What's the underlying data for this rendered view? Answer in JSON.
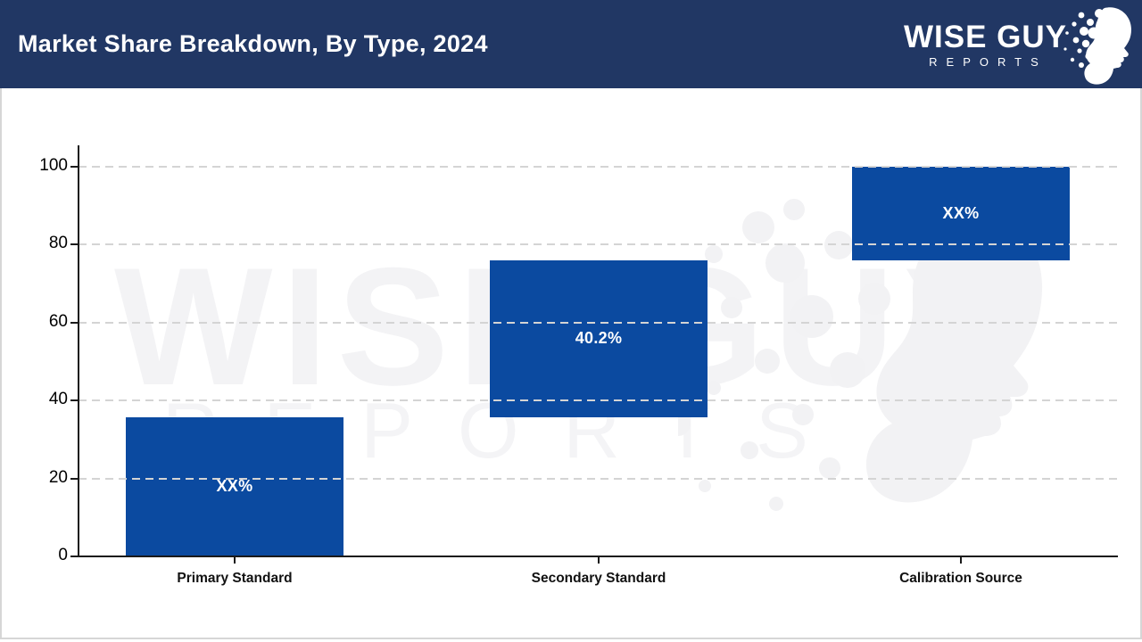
{
  "header": {
    "title": "Market Share Breakdown, By Type, 2024",
    "logo": {
      "line1": "WISE GUY",
      "line2": "REPORTS"
    }
  },
  "watermark": {
    "line1": "WISE GUY",
    "line2": "REPORTS"
  },
  "chart_data": {
    "type": "bar",
    "subtype": "waterfall",
    "title": "Market Share Breakdown, By Type, 2024",
    "categories": [
      "Primary Standard",
      "Secondary Standard",
      "Calibration Source"
    ],
    "segments": [
      {
        "category": "Primary Standard",
        "start": 0,
        "end": 35.8,
        "label": "XX%"
      },
      {
        "category": "Secondary Standard",
        "start": 35.8,
        "end": 76.0,
        "label": "40.2%"
      },
      {
        "category": "Calibration Source",
        "start": 76.0,
        "end": 100.0,
        "label": "XX%"
      }
    ],
    "yticks": [
      0,
      20,
      40,
      60,
      80,
      100
    ],
    "ylim": [
      0,
      105
    ],
    "xlabel": "",
    "ylabel": "",
    "legend": "none",
    "grid": "horizontal-dashed",
    "bar_color": "#0b4aa0"
  },
  "colors": {
    "header_bg": "#213764",
    "bar": "#0b4aa0",
    "axis": "#1a1a1a",
    "grid": "#d4d4d4",
    "watermark": "#f3f3f5",
    "bar_label": "#ffffff",
    "title_text": "#ffffff"
  }
}
